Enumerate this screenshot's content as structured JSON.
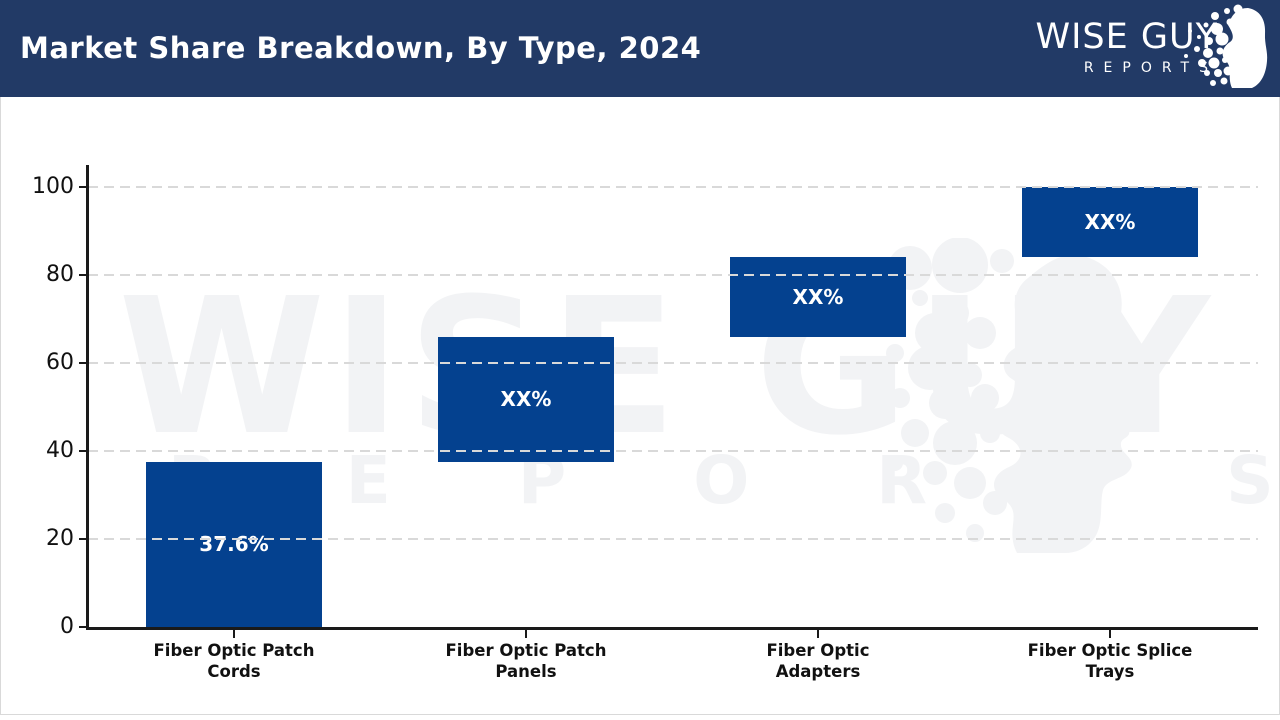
{
  "header": {
    "title": "Market Share Breakdown, By Type, 2024",
    "bg_color": "#223a66",
    "logo": {
      "line1": "WISE GUY",
      "line2": "REPORTS",
      "face_icon": "dotted-head-profile"
    }
  },
  "watermark": {
    "line1": "WISE GUY",
    "line2": "R E P O R T S",
    "face_icon": "dotted-head-profile",
    "color": "#f2f3f5"
  },
  "chart_data": {
    "type": "bar",
    "subtype": "waterfall",
    "title": "Market Share Breakdown, By Type, 2024",
    "categories": [
      "Fiber Optic Patch Cords",
      "Fiber Optic Patch Panels",
      "Fiber Optic Adapters",
      "Fiber Optic Splice Trays"
    ],
    "category_label_lines": [
      [
        "Fiber Optic Patch",
        "Cords"
      ],
      [
        "Fiber Optic Patch",
        "Panels"
      ],
      [
        "Fiber Optic",
        "Adapters"
      ],
      [
        "Fiber Optic Splice",
        "Trays"
      ]
    ],
    "segments": [
      {
        "category": "Fiber Optic Patch Cords",
        "base": 0,
        "top": 37.6,
        "label": "37.6%"
      },
      {
        "category": "Fiber Optic Patch Panels",
        "base": 37.6,
        "top": 65.9,
        "label": "XX%"
      },
      {
        "category": "Fiber Optic Adapters",
        "base": 65.9,
        "top": 84.0,
        "label": "XX%"
      },
      {
        "category": "Fiber Optic Splice Trays",
        "base": 84.0,
        "top": 100.0,
        "label": "XX%"
      }
    ],
    "xlabel": "",
    "ylabel": "",
    "ylim": [
      0,
      100
    ],
    "yticks": [
      0,
      20,
      40,
      60,
      80,
      100
    ],
    "legend": null,
    "grid": {
      "horizontal": true,
      "style": "dashed",
      "color": "#d9d9d9",
      "on_top_of_bars": true
    },
    "bar_color": "#04418f",
    "bar_label_color": "#ffffff",
    "axis_color": "#1a1a1a"
  }
}
